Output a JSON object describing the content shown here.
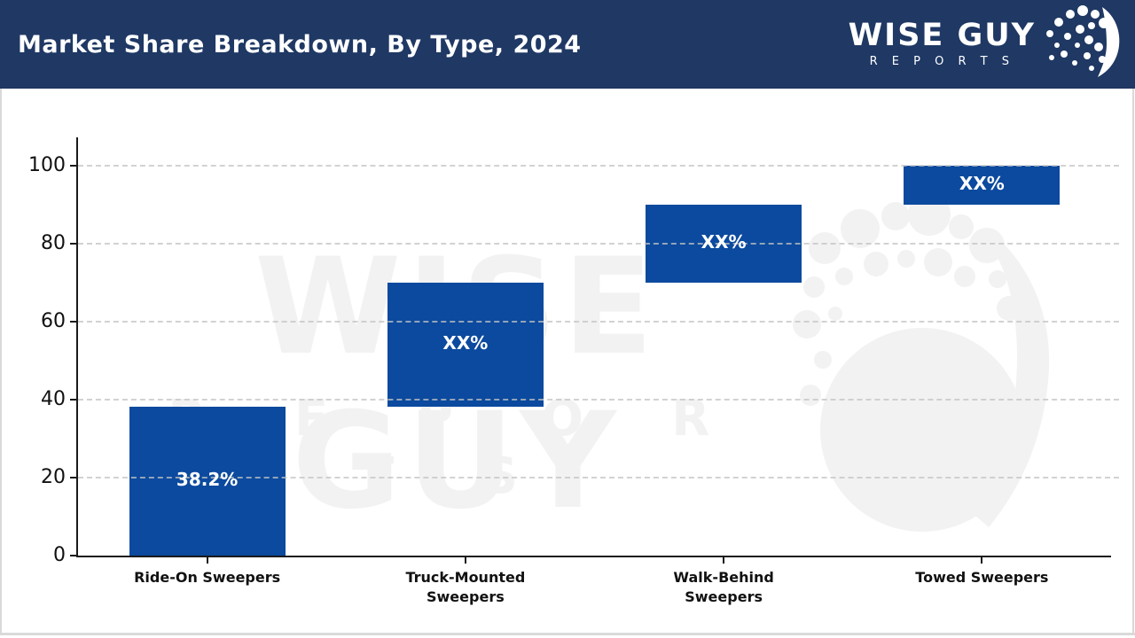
{
  "header": {
    "title": "Market Share Breakdown, By Type, 2024",
    "logo": {
      "name": "WISE GUY",
      "sub": "R E P O R T S"
    }
  },
  "watermark": {
    "name": "WISE GUY",
    "sub": "R E P O R T S"
  },
  "colors": {
    "header_bg": "#1f3864",
    "bar": "#0b4a9e",
    "bar_label_text": "#ffffff",
    "axis": "#1a1a1a",
    "gridline": "#c3c3c3",
    "tick_text": "#111111",
    "watermark": "#f2f2f3"
  },
  "chart_data": {
    "type": "bar",
    "subtype": "waterfall",
    "title": "Market Share Breakdown, By Type, 2024",
    "categories": [
      "Ride-On Sweepers",
      "Truck-Mounted Sweepers",
      "Walk-Behind Sweepers",
      "Towed Sweepers"
    ],
    "series": [
      {
        "name": "Ride-On Sweepers",
        "start": 0,
        "end": 38.2,
        "label": "38.2%"
      },
      {
        "name": "Truck-Mounted Sweepers",
        "start": 38.2,
        "end": 70,
        "label": "XX%"
      },
      {
        "name": "Walk-Behind Sweepers",
        "start": 70,
        "end": 90,
        "label": "XX%"
      },
      {
        "name": "Towed Sweepers",
        "start": 90,
        "end": 100,
        "label": "XX%"
      }
    ],
    "xlabel": "",
    "ylabel": "",
    "ylim": [
      0,
      100
    ],
    "yticks": [
      0,
      20,
      40,
      60,
      80,
      100
    ],
    "grid": "horizontal-dashed",
    "legend_position": "none"
  }
}
